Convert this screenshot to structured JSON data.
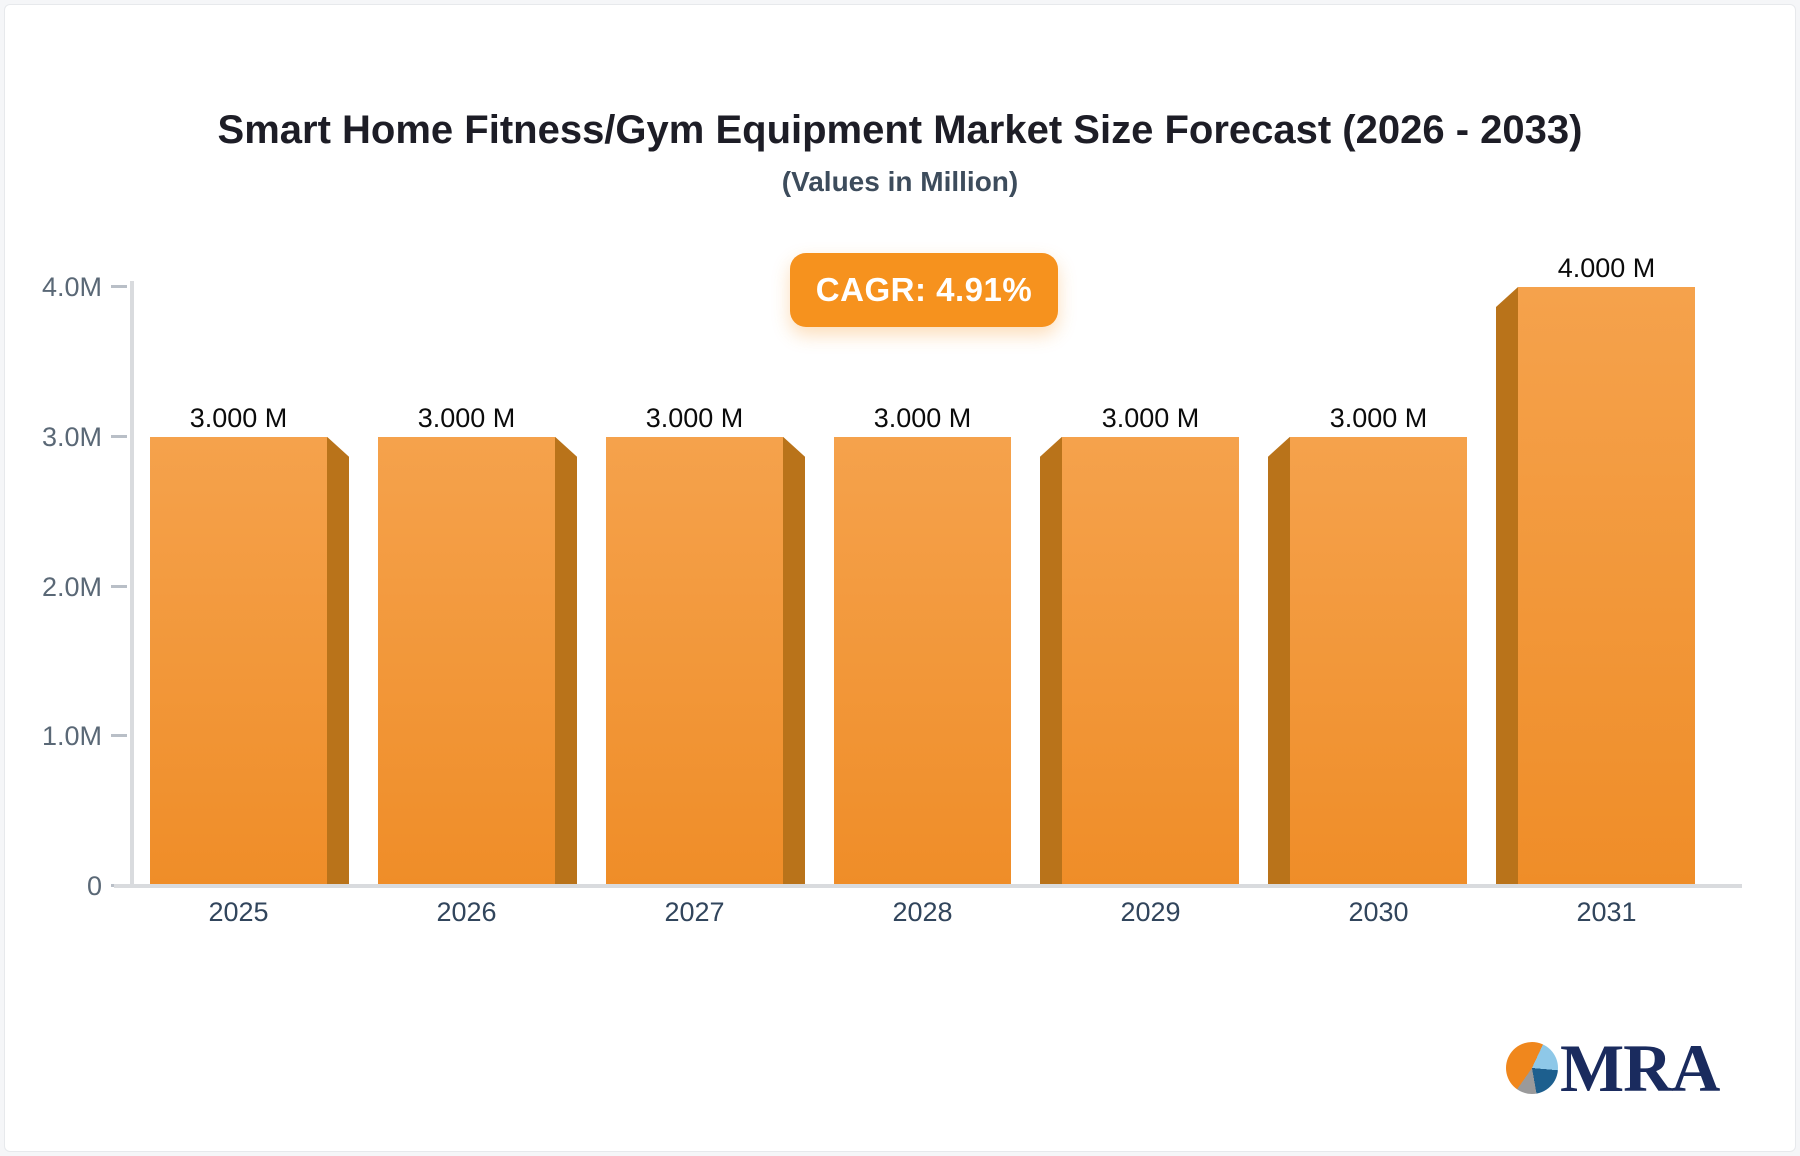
{
  "page": {
    "background": "#f5f6f8",
    "card_background": "#ffffff",
    "card_border": "#e7e9ec"
  },
  "cagr_badge": {
    "label": "CAGR: 4.91%",
    "bg": "#f6921e",
    "text_color": "#ffffff"
  },
  "chart_data": {
    "type": "bar",
    "title": "Smart Home Fitness/Gym Equipment Market Size Forecast (2026 - 2033)",
    "subtitle": "(Values in Million)",
    "unit": "Million",
    "categories": [
      "2025",
      "2026",
      "2027",
      "2028",
      "2029",
      "2030",
      "2031"
    ],
    "values": [
      3,
      3,
      3,
      3,
      3,
      3,
      4
    ],
    "value_labels": [
      "3.000 M",
      "3.000 M",
      "3.000 M",
      "3.000 M",
      "3.000 M",
      "3.000 M",
      "4.000 M"
    ],
    "xlabel": "",
    "ylabel": "",
    "ylim": [
      0,
      4
    ],
    "yticks": [
      {
        "value": 0,
        "label": "0"
      },
      {
        "value": 1,
        "label": "1.0M"
      },
      {
        "value": 2,
        "label": "2.0M"
      },
      {
        "value": 3,
        "label": "3.0M"
      },
      {
        "value": 4,
        "label": "4.0M"
      }
    ],
    "grid": false,
    "legend": false,
    "style": {
      "bar_front_top": "#f5a24c",
      "bar_front_bottom": "#ef8d28",
      "bar_side": "#b9731a",
      "axis_line": "#d9dbde",
      "tick_mark": "#b9bfc7",
      "tick_label_color": "#5a6876",
      "category_label_color": "#31455c",
      "value_label_color": "#0b0b0b"
    }
  },
  "logo": {
    "text": "MRA",
    "colors": {
      "text": "#1a2b5e",
      "pie_orange": "#f0871d",
      "pie_light_blue": "#8ec8e8",
      "pie_navy": "#1d5f8e",
      "pie_gray": "#9a9a9b"
    }
  }
}
